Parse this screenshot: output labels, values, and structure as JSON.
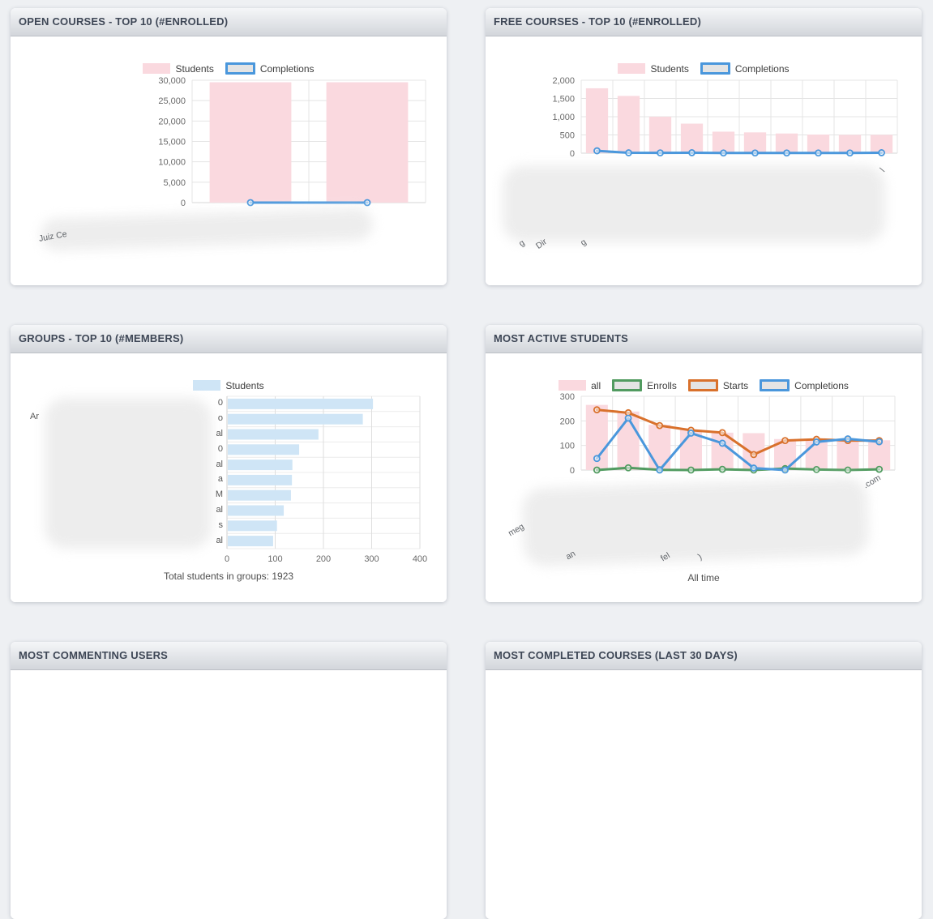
{
  "page": {
    "background": "#eef0f3"
  },
  "panels": [
    {
      "title": "OPEN COURSES - TOP 10 (#ENROLLED)"
    },
    {
      "title": "FREE COURSES - TOP 10 (#ENROLLED)"
    },
    {
      "title": "GROUPS - TOP 10 (#MEMBERS)"
    },
    {
      "title": "MOST ACTIVE STUDENTS"
    },
    {
      "title": "MOST COMMENTING USERS"
    },
    {
      "title": "MOST COMPLETED COURSES (LAST 30 DAYS)"
    }
  ],
  "chart_data": [
    {
      "id": "open-courses",
      "type": "bar",
      "title": "OPEN COURSES - TOP 10 (#ENROLLED)",
      "categories": [
        "",
        ""
      ],
      "x_labels_redacted": true,
      "visible_label_fragments": [
        "Juiz Ce"
      ],
      "series": [
        {
          "name": "Students",
          "type": "bar",
          "color": "#fad9df",
          "values": [
            29500,
            29500
          ]
        },
        {
          "name": "Completions",
          "type": "line",
          "color": "#4a97dc",
          "values": [
            0,
            0
          ]
        }
      ],
      "ylim": [
        0,
        30000
      ],
      "ystep": 5000,
      "grid": true,
      "legend_position": "top"
    },
    {
      "id": "free-courses",
      "type": "bar",
      "title": "FREE COURSES - TOP 10 (#ENROLLED)",
      "categories": [
        "",
        "",
        "",
        "",
        "",
        "",
        "",
        "",
        "",
        ""
      ],
      "x_labels_redacted": true,
      "visible_label_fragments": [
        "g",
        "Dir",
        "g",
        "\\"
      ],
      "series": [
        {
          "name": "Students",
          "type": "bar",
          "color": "#fad9df",
          "values": [
            1780,
            1570,
            1000,
            810,
            590,
            570,
            540,
            510,
            500,
            500
          ]
        },
        {
          "name": "Completions",
          "type": "line",
          "color": "#4a97dc",
          "values": [
            65,
            10,
            8,
            12,
            6,
            6,
            6,
            6,
            6,
            12
          ]
        }
      ],
      "ylim": [
        0,
        2000
      ],
      "ystep": 500,
      "grid": true,
      "legend_position": "top"
    },
    {
      "id": "groups",
      "type": "bar",
      "orientation": "horizontal",
      "title": "GROUPS - TOP 10 (#MEMBERS)",
      "categories": [
        "",
        "",
        "",
        "",
        "",
        "",
        "",
        "",
        "",
        ""
      ],
      "y_labels_redacted": true,
      "visible_label_suffixes": [
        "0",
        "o",
        "al",
        "0",
        "al",
        "a",
        "M",
        "al",
        "s",
        "al"
      ],
      "visible_label_prefix": "Ar",
      "series": [
        {
          "name": "Students",
          "type": "bar",
          "color": "#cfe5f6",
          "values": [
            301,
            280,
            188,
            148,
            134,
            133,
            131,
            116,
            102,
            94
          ]
        }
      ],
      "xlim": [
        0,
        400
      ],
      "xstep": 100,
      "grid": true,
      "legend_position": "top",
      "footer": "Total students in groups: 1923"
    },
    {
      "id": "most-active-students",
      "type": "bar",
      "title": "MOST ACTIVE STUDENTS",
      "categories": [
        "",
        "",
        "",
        "",
        "",
        "",
        "",
        "",
        "",
        ""
      ],
      "x_labels_redacted": true,
      "visible_label_fragments": [
        "meg",
        ".com",
        "an",
        "fel",
        ")"
      ],
      "series": [
        {
          "name": "all",
          "type": "bar",
          "color": "#fad9df",
          "values": [
            265,
            238,
            184,
            164,
            152,
            150,
            126,
            124,
            122,
            121
          ]
        },
        {
          "name": "Enrolls",
          "type": "line",
          "color": "#519b60",
          "values": [
            0,
            9,
            1,
            0,
            3,
            0,
            6,
            2,
            0,
            3
          ]
        },
        {
          "name": "Starts",
          "type": "line",
          "color": "#d9712c",
          "values": [
            245,
            233,
            181,
            162,
            152,
            63,
            120,
            125,
            120,
            120
          ]
        },
        {
          "name": "Completions",
          "type": "line",
          "color": "#4a97dc",
          "values": [
            47,
            211,
            0,
            150,
            109,
            8,
            0,
            114,
            127,
            115
          ]
        }
      ],
      "ylim": [
        0,
        300
      ],
      "ystep": 100,
      "grid": true,
      "legend_position": "top",
      "xlabel": "All time"
    }
  ]
}
